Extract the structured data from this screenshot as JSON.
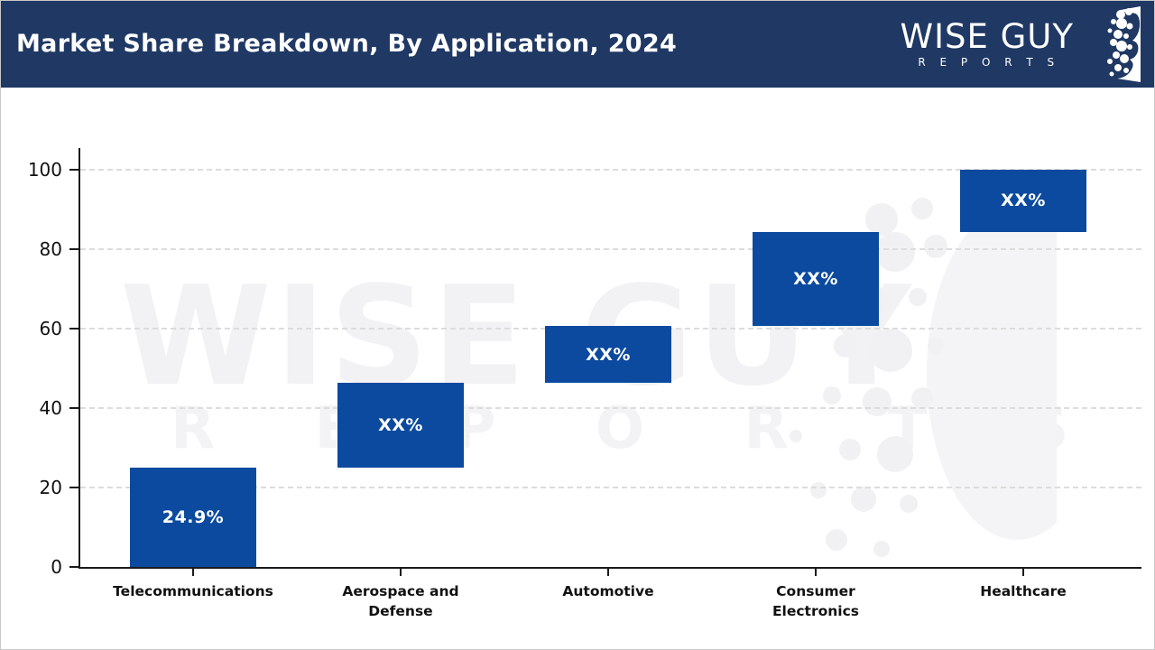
{
  "header": {
    "title": "Market Share Breakdown, By Application, 2024",
    "logo": {
      "line1": "WISE GUY",
      "line2": "R E P O R T S"
    }
  },
  "watermark": {
    "line1": "WISE GUY",
    "line2": "R E P O R T S"
  },
  "chart_data": {
    "type": "bar",
    "subtype": "waterfall",
    "title": "Market Share Breakdown, By Application, 2024",
    "xlabel": "",
    "ylabel": "",
    "ylim": [
      0,
      105
    ],
    "yticks": [
      0,
      20,
      40,
      60,
      80,
      100
    ],
    "grid": true,
    "gridline_style": "dashed",
    "legend": "none",
    "bar_color": "#0b4a9e",
    "bar_label_color": "#ffffff",
    "categories": [
      "Telecommunications",
      "Aerospace and Defense",
      "Automotive",
      "Consumer Electronics",
      "Healthcare"
    ],
    "bars": [
      {
        "category_lines": [
          "Telecommunications"
        ],
        "start": 0,
        "end": 24.9,
        "value": 24.9,
        "label": "24.9%"
      },
      {
        "category_lines": [
          "Aerospace and",
          "Defense"
        ],
        "start": 24.9,
        "end": 46.4,
        "value": 21.5,
        "label": "XX%"
      },
      {
        "category_lines": [
          "Automotive"
        ],
        "start": 46.4,
        "end": 60.6,
        "value": 14.2,
        "label": "XX%"
      },
      {
        "category_lines": [
          "Consumer",
          "Electronics"
        ],
        "start": 60.6,
        "end": 84.4,
        "value": 23.8,
        "label": "XX%"
      },
      {
        "category_lines": [
          "Healthcare"
        ],
        "start": 84.4,
        "end": 100,
        "value": 15.6,
        "label": "XX%"
      }
    ]
  }
}
